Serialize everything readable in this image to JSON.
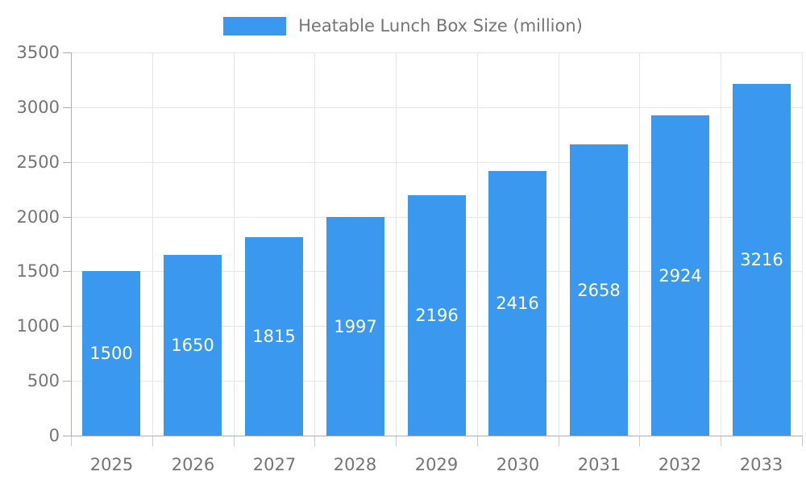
{
  "legend": {
    "label": "Heatable Lunch Box Size (million)"
  },
  "colors": {
    "bar": "#3A99EE",
    "grid": "#e6e6e6",
    "axis": "#b0b0b0",
    "tick": "#cccccc",
    "text": "#757575",
    "value_label": "#ffffff"
  },
  "chart_data": {
    "type": "bar",
    "title": "Heatable Lunch Box Size (million)",
    "categories": [
      "2025",
      "2026",
      "2027",
      "2028",
      "2029",
      "2030",
      "2031",
      "2032",
      "2033"
    ],
    "values": [
      1500,
      1650,
      1815,
      1997,
      2196,
      2416,
      2658,
      2924,
      3216
    ],
    "xlabel": "",
    "ylabel": "",
    "ylim": [
      0,
      3500
    ],
    "ytick_step": 500,
    "yticks": [
      "0",
      "500",
      "1000",
      "1500",
      "2000",
      "2500",
      "3000",
      "3500"
    ],
    "grid": true,
    "legend_position": "top",
    "value_labels": "inside-center"
  }
}
